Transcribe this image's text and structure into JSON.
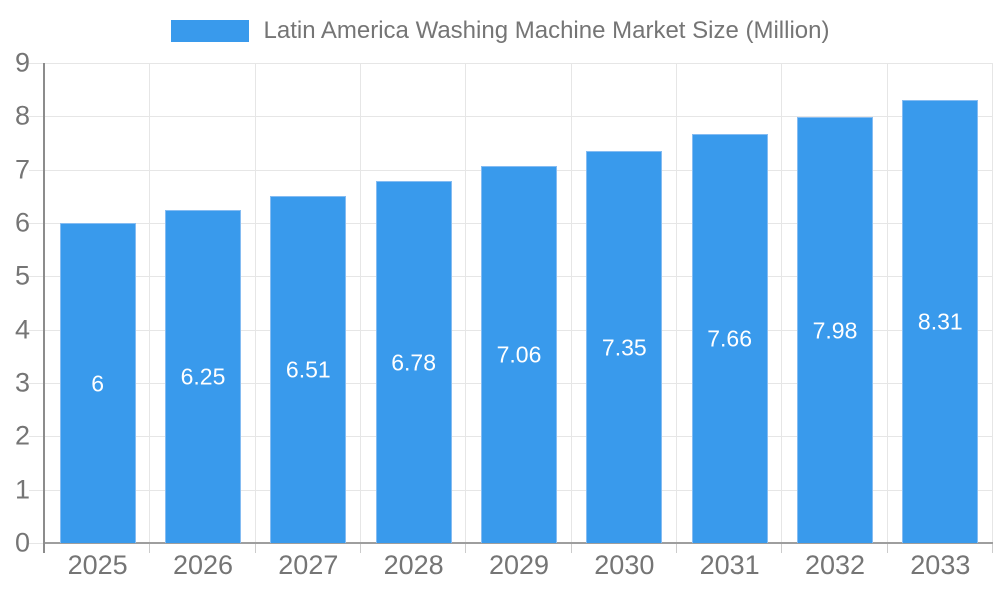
{
  "colors": {
    "background": "#FFFFFF",
    "bar_fill": "#399AEC",
    "bar_border": "#85BCF2",
    "bar_label": "#FFFFFF",
    "grid_line": "#E6E6E6",
    "axis_line": "#8C8C8C",
    "baseline": "#9E9E9E",
    "tick": "#CCCCCC",
    "axis_label": "#757575",
    "title_text": "#757575"
  },
  "chart_data": {
    "type": "bar",
    "title": "Latin America Washing Machine Market Size (Million)",
    "categories": [
      "2025",
      "2026",
      "2027",
      "2028",
      "2029",
      "2030",
      "2031",
      "2032",
      "2033"
    ],
    "values": [
      6,
      6.25,
      6.51,
      6.78,
      7.06,
      7.35,
      7.66,
      7.98,
      8.31
    ],
    "value_labels": [
      "6",
      "6.25",
      "6.51",
      "6.78",
      "7.06",
      "7.35",
      "7.66",
      "7.98",
      "8.31"
    ],
    "xlabel": "",
    "ylabel": "",
    "ylim": [
      0,
      9
    ],
    "ytick_step": 1,
    "ytick_labels": [
      "0",
      "1",
      "2",
      "3",
      "4",
      "5",
      "6",
      "7",
      "8",
      "9"
    ],
    "grid": true,
    "legend_position": "top-center",
    "value_label_position": "center-of-bar"
  }
}
